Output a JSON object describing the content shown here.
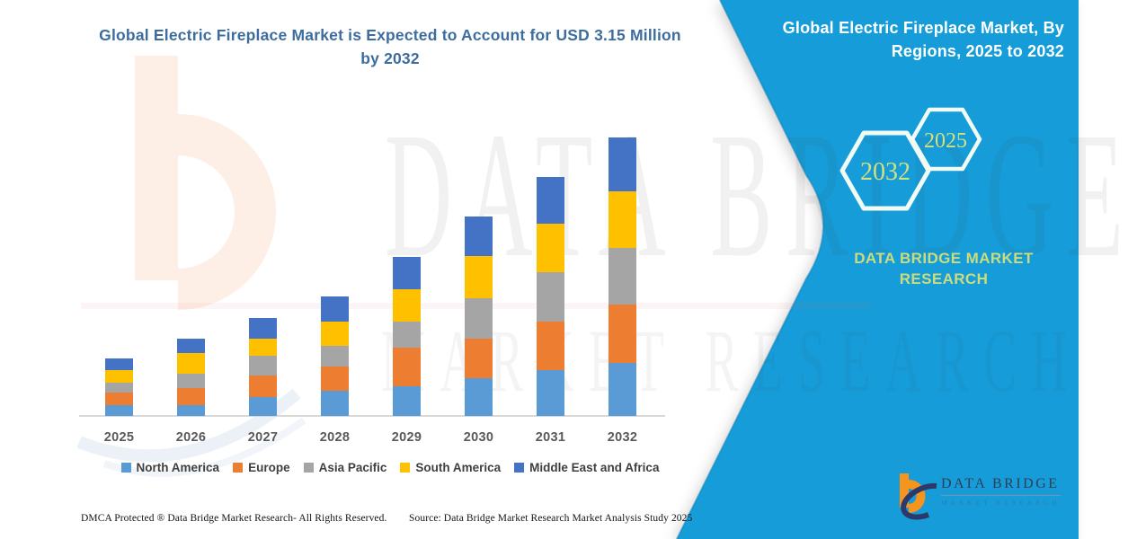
{
  "chart": {
    "title_line1": "Global Electric Fireplace Market is Expected to Account for USD 3.15 Million",
    "title_line2": "by 2032"
  },
  "chart_data": {
    "type": "bar",
    "stacked": true,
    "title": "Global Electric Fireplace Market is Expected to Account for USD 3.15 Million by 2032",
    "unit": "USD Million",
    "categories": [
      "2025",
      "2026",
      "2027",
      "2028",
      "2029",
      "2030",
      "2031",
      "2032"
    ],
    "series": [
      {
        "name": "North America",
        "color": "#5B9BD5",
        "values": [
          0.12,
          0.12,
          0.21,
          0.28,
          0.34,
          0.43,
          0.52,
          0.6
        ]
      },
      {
        "name": "Europe",
        "color": "#ED7D31",
        "values": [
          0.14,
          0.19,
          0.25,
          0.28,
          0.43,
          0.44,
          0.55,
          0.66
        ]
      },
      {
        "name": "Asia Pacific",
        "color": "#A5A5A5",
        "values": [
          0.12,
          0.17,
          0.22,
          0.23,
          0.3,
          0.46,
          0.56,
          0.64
        ]
      },
      {
        "name": "South America",
        "color": "#FFC000",
        "values": [
          0.14,
          0.23,
          0.19,
          0.28,
          0.36,
          0.48,
          0.54,
          0.64
        ]
      },
      {
        "name": "Middle East and Africa",
        "color": "#4472C4",
        "values": [
          0.13,
          0.16,
          0.24,
          0.28,
          0.37,
          0.45,
          0.53,
          0.61
        ]
      }
    ],
    "totals": [
      0.65,
      0.87,
      1.11,
      1.35,
      1.8,
      2.26,
      2.7,
      3.15
    ],
    "x_axis": {
      "labels_visible": true
    },
    "y_axis": {
      "visible": false
    },
    "gridlines": false,
    "legend_position": "bottom"
  },
  "right_panel": {
    "background_color": "#169cd8",
    "heading_line1": "Global Electric Fireplace Market, By",
    "heading_line2": "Regions, 2025 to 2032",
    "hex_back_label": "2032",
    "hex_front_label": "2025",
    "hex_label_color": "#d2e07f",
    "brand_line1": "DATA BRIDGE MARKET",
    "brand_line2": "RESEARCH"
  },
  "watermarks": {
    "row1": "DATA BRIDGE",
    "row2": "MARKET RESEARCH"
  },
  "footer": {
    "dmca": "DMCA Protected ® Data Bridge Market Research-  All Rights Reserved.",
    "source": "Source: Data Bridge Market Research  Market Analysis Study 2025"
  },
  "logo": {
    "title": "DATA BRIDGE",
    "subtitle": "MARKET RESEARCH",
    "b_color": "#F7941E",
    "swoosh_color": "#2b3a6b"
  }
}
